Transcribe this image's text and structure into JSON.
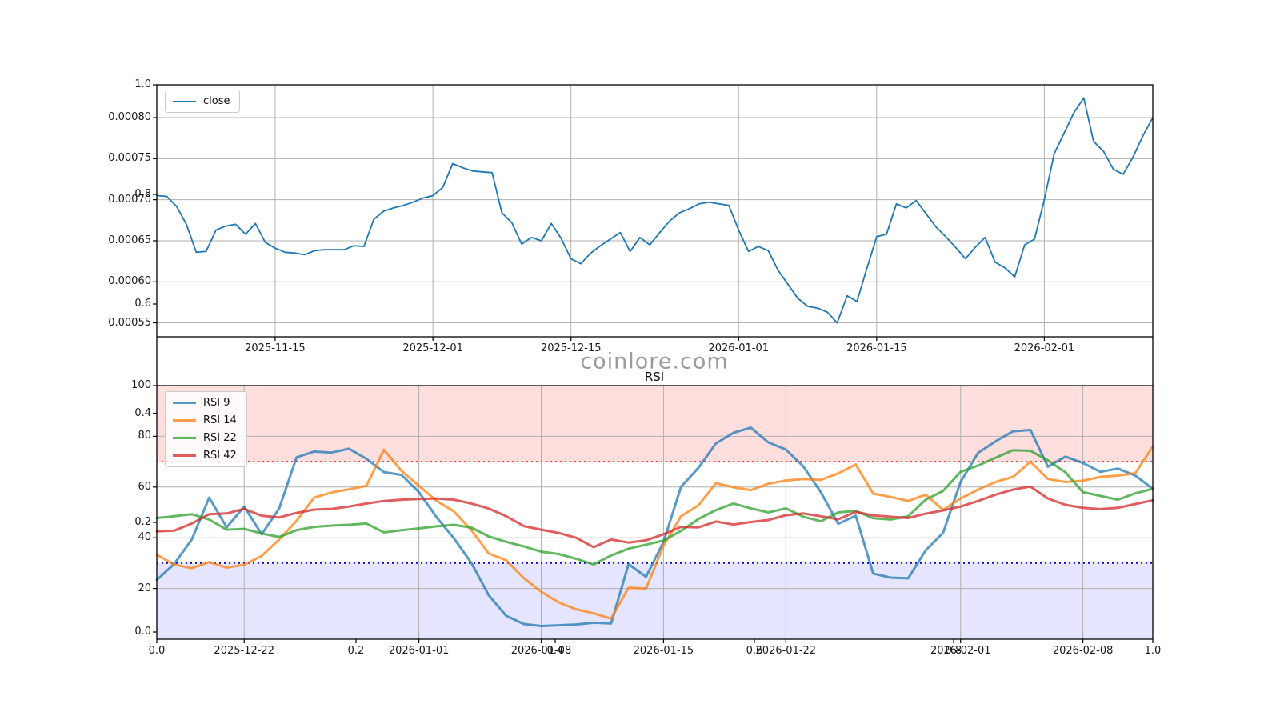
{
  "watermark": "coinlore.com",
  "colors": {
    "close_line": "#1f77b4",
    "rsi9": "rgba(31,119,180,0.75)",
    "rsi14": "rgba(255,127,14,0.75)",
    "rsi22": "rgba(44,160,44,0.75)",
    "rsi42": "rgba(214,39,40,0.75)",
    "overbought_band": "rgba(255,0,0,0.13)",
    "oversold_band": "rgba(0,0,255,0.10)",
    "overbought_line": "#ff0000",
    "oversold_line": "#0000cc",
    "grid": "#b0b0b0",
    "spine": "#000000"
  },
  "hidden_axis": {
    "x_tick_labels": [
      "0.0",
      "0.2",
      "0.4",
      "0.6",
      "0.8",
      "1.0"
    ],
    "y_tick_labels": [
      "1.0",
      "0.8",
      "0.6",
      "0.4",
      "0.2",
      "0.0"
    ]
  },
  "chart_data": [
    {
      "type": "line",
      "title": "",
      "x_start_date": "2025-11-03",
      "x_end_date": "2026-02-12",
      "ylim": [
        0.000533,
        0.00084
      ],
      "grid": true,
      "legend_position": "upper left",
      "y_ticks": [
        {
          "v": 0.0008,
          "label": "0.00080"
        },
        {
          "v": 0.00075,
          "label": "0.00075"
        },
        {
          "v": 0.0007,
          "label": "0.00070"
        },
        {
          "v": 0.00065,
          "label": "0.00065"
        },
        {
          "v": 0.0006,
          "label": "0.00060"
        },
        {
          "v": 0.00055,
          "label": "0.00055"
        }
      ],
      "x_ticks": [
        {
          "i": 12,
          "label": "2025-11-15"
        },
        {
          "i": 28,
          "label": "2025-12-01"
        },
        {
          "i": 42,
          "label": "2025-12-15"
        },
        {
          "i": 59,
          "label": "2026-01-01"
        },
        {
          "i": 73,
          "label": "2026-01-15"
        },
        {
          "i": 90,
          "label": "2026-02-01"
        }
      ],
      "series": [
        {
          "name": "close",
          "color": "#1f77b4",
          "width": 1.8,
          "values": [
            0.000705,
            0.000704,
            0.000692,
            0.00067,
            0.000636,
            0.000637,
            0.000663,
            0.000668,
            0.00067,
            0.000658,
            0.000671,
            0.000648,
            0.000641,
            0.000636,
            0.000635,
            0.000633,
            0.000638,
            0.000639,
            0.000639,
            0.000639,
            0.000644,
            0.000643,
            0.000676,
            0.000686,
            0.00069,
            0.000693,
            0.000697,
            0.000702,
            0.000705,
            0.000715,
            0.000744,
            0.000739,
            0.000735,
            0.000734,
            0.000733,
            0.000684,
            0.000672,
            0.000646,
            0.000654,
            0.00065,
            0.000671,
            0.000653,
            0.000628,
            0.000622,
            0.000635,
            0.000644,
            0.000652,
            0.00066,
            0.000637,
            0.000654,
            0.000645,
            0.00066,
            0.000674,
            0.000684,
            0.000689,
            0.000695,
            0.000697,
            0.000695,
            0.000693,
            0.000663,
            0.000637,
            0.000643,
            0.000638,
            0.000614,
            0.000597,
            0.00058,
            0.00057,
            0.000568,
            0.000563,
            0.00055,
            0.000583,
            0.000576,
            0.000616,
            0.000655,
            0.000658,
            0.000695,
            0.00069,
            0.000699,
            0.000683,
            0.000667,
            0.000655,
            0.000642,
            0.000628,
            0.000642,
            0.000654,
            0.000624,
            0.000617,
            0.000606,
            0.000645,
            0.000652,
            0.0007,
            0.000756,
            0.000781,
            0.000806,
            0.000824,
            0.000771,
            0.000759,
            0.000737,
            0.000731,
            0.000752,
            0.000778,
            0.0008
          ]
        }
      ]
    },
    {
      "type": "line",
      "title": "RSI",
      "x_start_date": "2025-12-17",
      "x_end_date": "2026-02-12",
      "ylim": [
        0,
        100
      ],
      "grid": true,
      "legend_position": "upper left",
      "bands": [
        {
          "from": 70,
          "to": 100,
          "color": "rgba(255,0,0,0.13)",
          "name": "overbought"
        },
        {
          "from": 0,
          "to": 30,
          "color": "rgba(0,0,255,0.10)",
          "name": "oversold"
        }
      ],
      "hlines": [
        {
          "y": 70,
          "color": "#ff0000",
          "style": "dotted",
          "name": "overbought-threshold"
        },
        {
          "y": 30,
          "color": "#0000cc",
          "style": "dotted",
          "name": "oversold-threshold"
        }
      ],
      "y_ticks": [
        {
          "v": 100,
          "label": "100"
        },
        {
          "v": 80,
          "label": "80"
        },
        {
          "v": 60,
          "label": "60"
        },
        {
          "v": 40,
          "label": "40"
        },
        {
          "v": 20,
          "label": "20"
        }
      ],
      "x_ticks": [
        {
          "i": 5,
          "label": "2025-12-22"
        },
        {
          "i": 15,
          "label": "2026-01-01"
        },
        {
          "i": 22,
          "label": "2026-01-08"
        },
        {
          "i": 29,
          "label": "2026-01-15"
        },
        {
          "i": 36,
          "label": "2026-01-22"
        },
        {
          "i": 46,
          "label": "2026-02-01"
        },
        {
          "i": 53,
          "label": "2026-02-08"
        }
      ],
      "series": [
        {
          "name": "RSI 9",
          "color": "rgba(31,119,180,0.75)",
          "width": 3,
          "values": [
            23.4,
            29.7,
            39.3,
            55.8,
            44.1,
            52.3,
            41.4,
            51.5,
            71.7,
            74.0,
            73.6,
            75.1,
            71.1,
            65.9,
            64.8,
            58.0,
            48.2,
            39.8,
            30.1,
            17.3,
            9.2,
            6.0,
            5.2,
            5.5,
            5.8,
            6.5,
            6.2,
            29.6,
            24.6,
            38.4,
            60.1,
            67.6,
            77.2,
            81.4,
            83.4,
            77.6,
            74.8,
            68.1,
            58.0,
            45.5,
            48.7,
            25.9,
            24.3,
            24.0,
            35.0,
            42.0,
            62.0,
            73.5,
            78.0,
            82.0,
            82.5,
            68.0,
            72.0,
            69.5,
            66.0,
            67.3,
            64.5,
            59.3
          ]
        },
        {
          "name": "RSI 14",
          "color": "rgba(255,127,14,0.75)",
          "width": 3,
          "values": [
            33.3,
            29.4,
            28.0,
            30.4,
            28.2,
            29.4,
            32.8,
            39.3,
            46.7,
            55.8,
            57.9,
            59.1,
            60.5,
            74.7,
            66.4,
            60.5,
            54.6,
            50.4,
            43.0,
            33.8,
            31.1,
            24.1,
            18.7,
            14.5,
            11.8,
            10.2,
            8.1,
            20.3,
            20.0,
            36.8,
            48.5,
            52.8,
            61.5,
            59.9,
            58.8,
            61.3,
            62.6,
            63.2,
            62.8,
            65.4,
            68.9,
            57.4,
            56.1,
            54.5,
            57.0,
            51.0,
            55.5,
            59.0,
            62.0,
            64.0,
            70.0,
            63.2,
            62.0,
            62.5,
            64.0,
            64.5,
            65.5,
            76.0
          ]
        },
        {
          "name": "RSI 22",
          "color": "rgba(44,160,44,0.75)",
          "width": 3,
          "values": [
            47.8,
            48.5,
            49.3,
            47.2,
            43.2,
            43.5,
            41.7,
            40.3,
            43.0,
            44.3,
            44.8,
            45.1,
            45.6,
            42.1,
            43.0,
            43.7,
            44.5,
            45.1,
            44.0,
            40.5,
            38.4,
            36.6,
            34.5,
            33.6,
            31.7,
            29.5,
            33.0,
            35.7,
            37.3,
            38.9,
            42.7,
            47.4,
            50.9,
            53.5,
            51.6,
            50.0,
            51.6,
            48.3,
            46.5,
            50.0,
            50.6,
            47.7,
            47.2,
            48.5,
            55.0,
            58.5,
            66.0,
            68.5,
            71.5,
            74.5,
            74.3,
            70.5,
            65.8,
            58.0,
            56.5,
            55.0,
            57.5,
            59.3
          ]
        },
        {
          "name": "RSI 42",
          "color": "rgba(214,39,40,0.75)",
          "width": 3,
          "values": [
            42.5,
            42.8,
            45.6,
            49.3,
            49.6,
            51.4,
            48.7,
            48.0,
            49.8,
            51.1,
            51.4,
            52.3,
            53.5,
            54.5,
            55.0,
            55.3,
            55.5,
            55.0,
            53.5,
            51.5,
            48.5,
            44.6,
            43.2,
            41.9,
            40.0,
            36.3,
            39.3,
            38.1,
            39.0,
            41.4,
            44.3,
            44.1,
            46.4,
            45.2,
            46.2,
            47.0,
            48.9,
            49.6,
            48.5,
            47.3,
            50.2,
            48.8,
            48.3,
            47.8,
            49.5,
            50.8,
            52.3,
            54.5,
            57.0,
            59.0,
            60.2,
            55.5,
            53.0,
            51.8,
            51.3,
            51.8,
            53.3,
            54.8
          ]
        }
      ]
    }
  ]
}
